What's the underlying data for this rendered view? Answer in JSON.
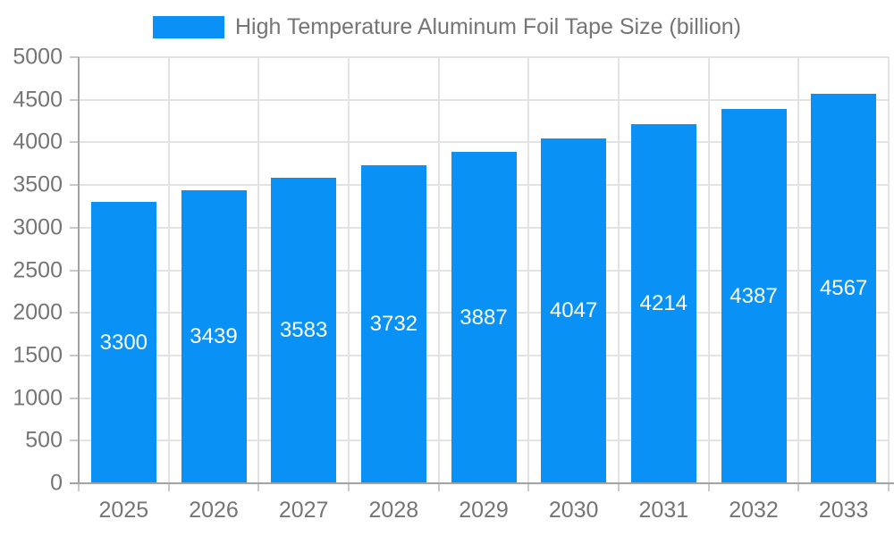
{
  "chart_data": {
    "type": "bar",
    "title": "High Temperature Aluminum Foil Tape Size (billion)",
    "categories": [
      "2025",
      "2026",
      "2027",
      "2028",
      "2029",
      "2030",
      "2031",
      "2032",
      "2033"
    ],
    "series": [
      {
        "name": "High Temperature Aluminum Foil Tape Size (billion)",
        "values": [
          3300,
          3439,
          3583,
          3732,
          3887,
          4047,
          4214,
          4387,
          4567
        ]
      }
    ],
    "xlabel": "",
    "ylabel": "",
    "ylim": [
      0,
      5000
    ],
    "ytick_step": 500,
    "ytick_labels": [
      "0",
      "500",
      "1000",
      "1500",
      "2000",
      "2500",
      "3000",
      "3500",
      "4000",
      "4500",
      "5000"
    ],
    "grid": true,
    "legend_position": "top",
    "value_label_position": "inside-center"
  },
  "colors": {
    "bar": "#0991f5",
    "axis": "#a3a3a3",
    "grid": "#e3e3e3",
    "tick": "#c9c9c9",
    "text": "#757575",
    "value_label": "#ffffff",
    "background": "#ffffff"
  }
}
